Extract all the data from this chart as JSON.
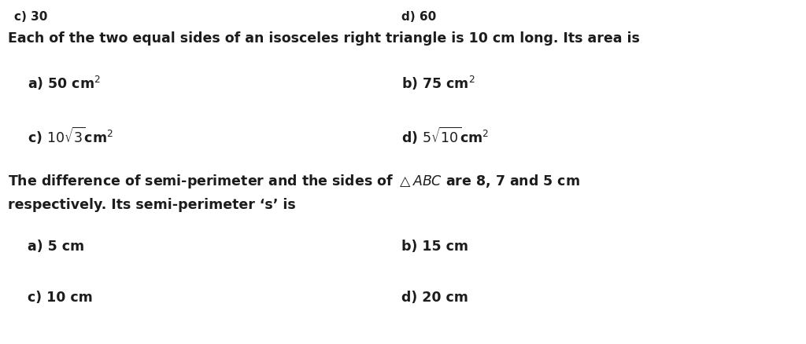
{
  "bg_color": "#ffffff",
  "text_color": "#1c1c1c",
  "top_left_partial": "c) 30",
  "top_right_partial": "d) 60",
  "q1_stem": "Each of the two equal sides of an isosceles right triangle is 10 cm long. Its area is",
  "q2_stem1": "The difference of semi-perimeter and the sides of △​ABC are 8, 7 and 5 cm",
  "q2_stem2": "respectively. Its semi-perimeter ‘s’ is",
  "q2_a": "a) 5 cm",
  "q2_b": "b) 15 cm",
  "q2_c": "c) 10 cm",
  "q2_d": "d) 20 cm",
  "fig_width": 10.24,
  "fig_height": 4.39,
  "dpi": 100
}
